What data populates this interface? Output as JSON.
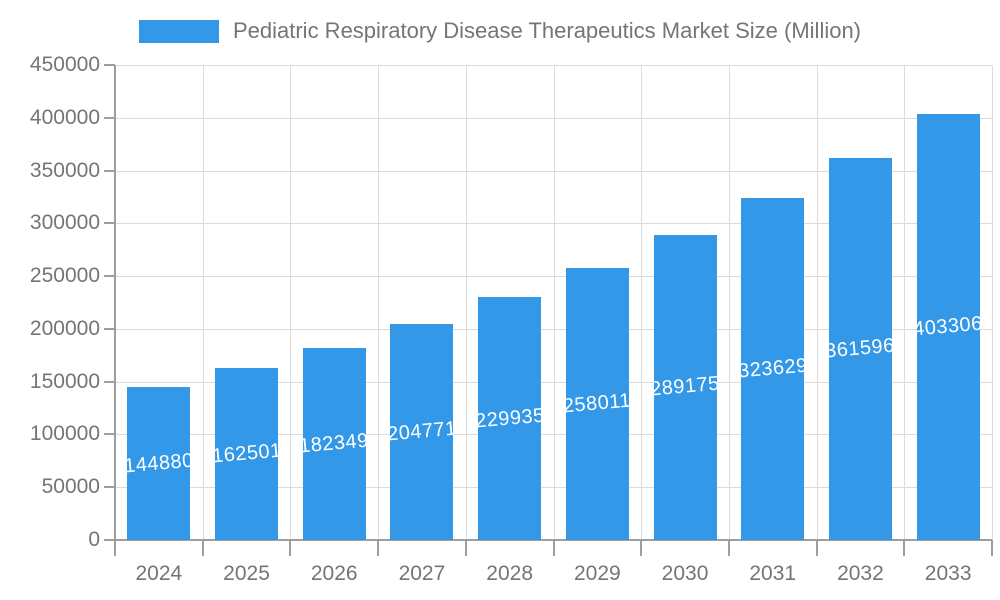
{
  "legend": {
    "series_label": "Pediatric Respiratory Disease Therapeutics Market Size (Million)"
  },
  "chart_data": {
    "type": "bar",
    "title": "Pediatric Respiratory Disease Therapeutics Market Size (Million)",
    "xlabel": "",
    "ylabel": "",
    "categories": [
      "2024",
      "2025",
      "2026",
      "2027",
      "2028",
      "2029",
      "2030",
      "2031",
      "2032",
      "2033"
    ],
    "values": [
      144880,
      162501,
      182349,
      204771,
      229935,
      258011,
      289175,
      323629,
      361596,
      403306
    ],
    "ylim": [
      0,
      450000
    ],
    "ytick_interval": 50000,
    "ytick_labels": [
      "0",
      "50000",
      "100000",
      "150000",
      "200000",
      "250000",
      "300000",
      "350000",
      "400000",
      "450000"
    ],
    "grid": true,
    "legend_position": "top",
    "bar_color": "#3398e8",
    "bar_label_color": "#ffffff",
    "axis_text_color": "#757575",
    "gridline_color": "#dcdcdc",
    "axis_line_color": "#9e9e9e",
    "background_color": "#ffffff"
  }
}
